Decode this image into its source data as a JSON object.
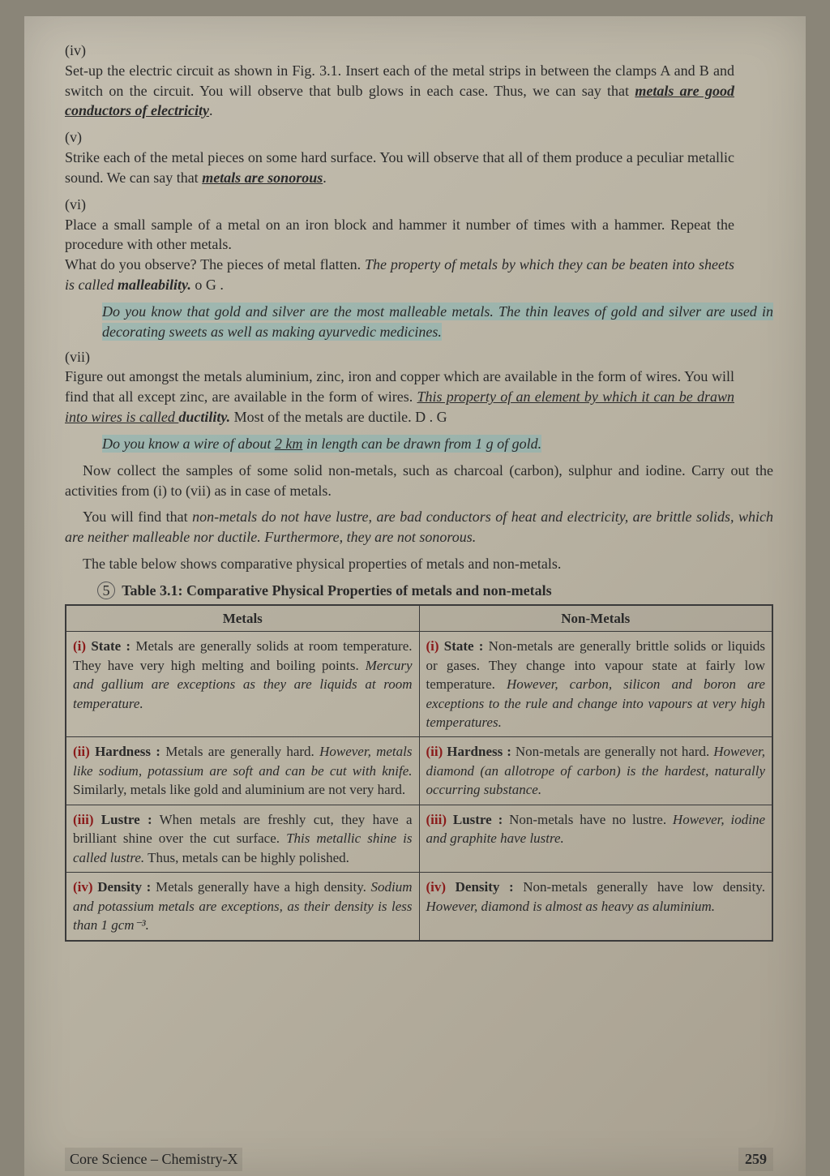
{
  "items": {
    "iv": {
      "num": "(iv)",
      "text_a": "Set-up the electric circuit as shown in Fig. 3.1. Insert each of the metal strips in between the clamps A and B and switch on the circuit. You will observe that bulb glows in each case. Thus, we can say that ",
      "u1": "metals are good conductors of electricity",
      "text_b": "."
    },
    "v": {
      "num": "(v)",
      "text_a": "Strike each of the metal pieces on some hard surface. You will observe that all of them produce a peculiar metallic sound. We can say that ",
      "u1": "metals are sonorous",
      "text_b": "."
    },
    "vi": {
      "num": "(vi)",
      "text_a": "Place a small sample of a metal on an iron block and hammer it number of times with a hammer. Repeat the procedure with other metals.",
      "q": "What do you observe? The pieces of metal flatten. ",
      "it": "The property of metals by which they can be beaten into sheets is called ",
      "bw": "malleability.",
      "hand": " o G ."
    },
    "note1_a": "Do you know that gold and silver are the most malleable metals. The thin leaves of gold and silver are used in decorating sweets as well as making ayurvedic medicines.",
    "vii": {
      "num": "(vii)",
      "text_a": "Figure out amongst the metals aluminium, zinc, iron and copper which are available in the form of wires. You will find that all except zinc, are available in the form of wires. ",
      "u1": "This property of an element by which it can be drawn into wires is called ",
      "bw": "ductility.",
      "text_b": " Most of the metals are ductile. ",
      "hand": "D . G"
    },
    "note2_a": "Do you know a wire of about ",
    "note2_u": "2 km",
    "note2_b": " in length can be drawn from 1 g of gold."
  },
  "paras": {
    "p1": "Now collect the samples of some solid non-metals, such as charcoal (carbon), sulphur and iodine. Carry out the activities from (i) to (vii) as in case of metals.",
    "p2_a": "You will find that ",
    "p2_it": "non-metals do not have lustre, are bad conductors of heat and electricity, are brittle solids, which are neither malleable nor ductile. Furthermore, they are not sonorous.",
    "p3": "The table below shows comparative physical properties of metals and non-metals."
  },
  "table": {
    "num": "5",
    "title": "Table 3.1: Comparative Physical Properties of metals and non-metals",
    "head_l": "Metals",
    "head_r": "Non-Metals",
    "rows": [
      {
        "ln": "(i)",
        "lhead": "State :",
        "ltext": " Metals are generally solids at room temperature. They have very high melting and boiling points. ",
        "lit": "Mercury and gallium are exceptions as they are liquids at room temperature.",
        "rn": "(i)",
        "rhead": "State :",
        "rtext": " Non-metals are generally brittle solids or liquids or gases. They change into vapour state at fairly low temperature. ",
        "rit": "However, carbon, silicon and boron are exceptions to the rule and change into vapours at very high temperatures."
      },
      {
        "ln": "(ii)",
        "lhead": "Hardness :",
        "ltext": " Metals are generally hard. ",
        "lit": "However, metals like sodium, potassium are soft and can be cut with knife.",
        "ltail": " Similarly, metals like gold and aluminium are not very hard.",
        "rn": "(ii)",
        "rhead": "Hardness :",
        "rtext": " Non-metals are generally not hard. ",
        "rit": "However, diamond (an allotrope of carbon) is the hardest, naturally occurring substance."
      },
      {
        "ln": "(iii)",
        "lhead": "Lustre :",
        "ltext": " When metals are freshly cut, they have a brilliant shine over the cut surface. ",
        "lit": "This metallic shine is called lustre.",
        "ltail": " Thus, metals can be highly polished.",
        "rn": "(iii)",
        "rhead": "Lustre :",
        "rtext": " Non-metals have no lustre. ",
        "rit": "However, iodine and graphite have lustre."
      },
      {
        "ln": "(iv)",
        "lhead": "Density :",
        "ltext": " Metals generally have a high density. ",
        "lit": "Sodium and potassium metals are exceptions, as their density is less than 1 gcm⁻³.",
        "rn": "(iv)",
        "rhead": "Density :",
        "rtext": " Non-metals generally have low density. ",
        "rit": "However, diamond is almost as heavy as aluminium."
      }
    ]
  },
  "footer": {
    "book": "Core Science – Chemistry-X",
    "page": "259"
  }
}
